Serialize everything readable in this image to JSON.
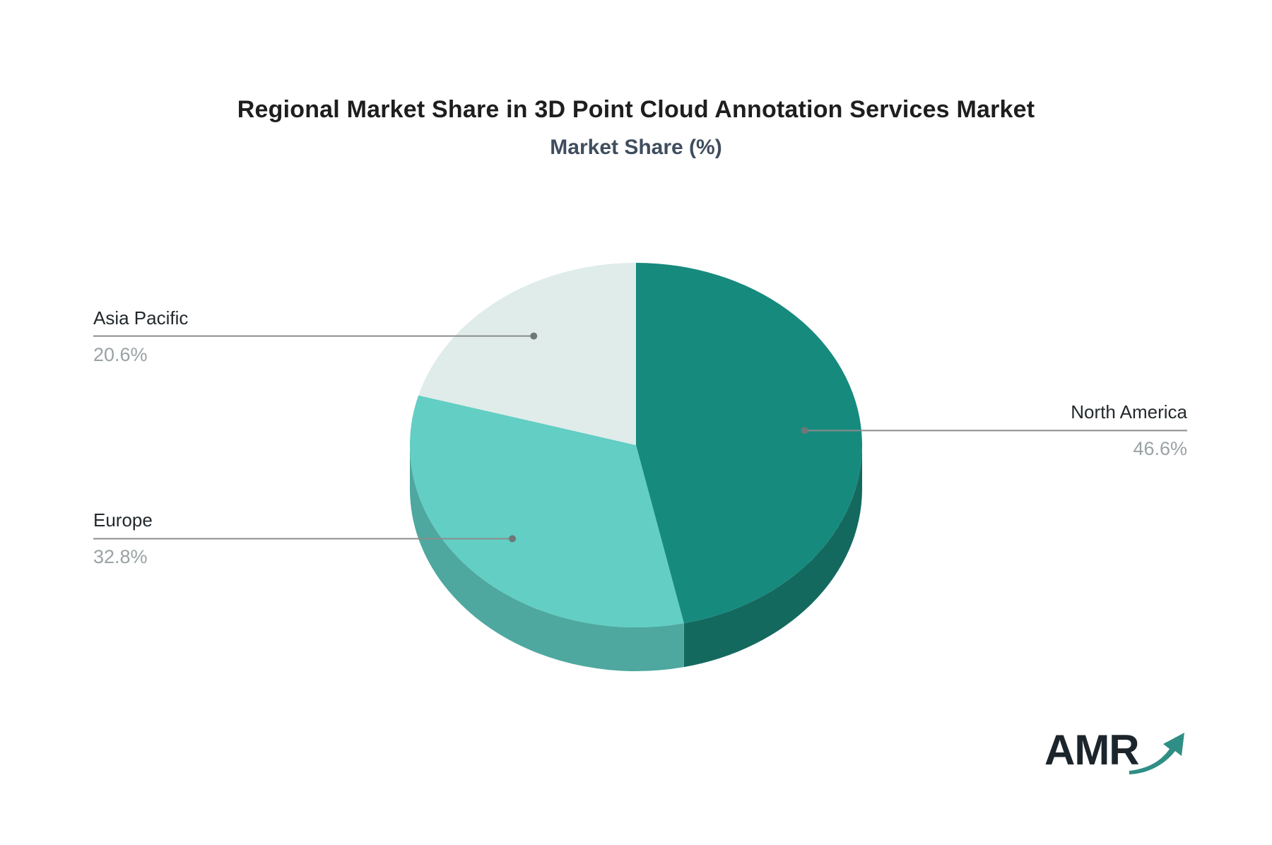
{
  "header": {
    "title": "Regional Market Share in 3D Point Cloud Annotation Services Market",
    "subtitle": "Market Share (%)"
  },
  "chart_data": {
    "type": "pie",
    "title": "Regional Market Share in 3D Point Cloud Annotation Services Market",
    "subtitle": "Market Share (%)",
    "unit": "%",
    "effect": "3d",
    "start_angle_deg": 0,
    "direction": "clockwise",
    "legend": "none",
    "slices": [
      {
        "label": "North America",
        "value": 46.6,
        "pct_label": "46.6%",
        "color": "#178a7e",
        "side_color": "#14695f",
        "label_side": "right"
      },
      {
        "label": "Europe",
        "value": 32.8,
        "pct_label": "32.8%",
        "color": "#62cec4",
        "side_color": "#4ea89f",
        "label_side": "left"
      },
      {
        "label": "Asia Pacific",
        "value": 20.6,
        "pct_label": "20.6%",
        "color": "#dfecea",
        "side_color": "#c5d9d6",
        "label_side": "left"
      }
    ]
  },
  "style": {
    "background": "#ffffff",
    "title_color": "#1e1e1e",
    "subtitle_color": "#3f4d5e",
    "label_color": "#23292c",
    "value_color": "#9aa2a4",
    "line_color": "#8c8c8c",
    "dot_color": "#6f7778",
    "logo_text_color": "#1c252c",
    "logo_arrow_color": "#2f8e85"
  },
  "logo": {
    "text": "AMR"
  }
}
